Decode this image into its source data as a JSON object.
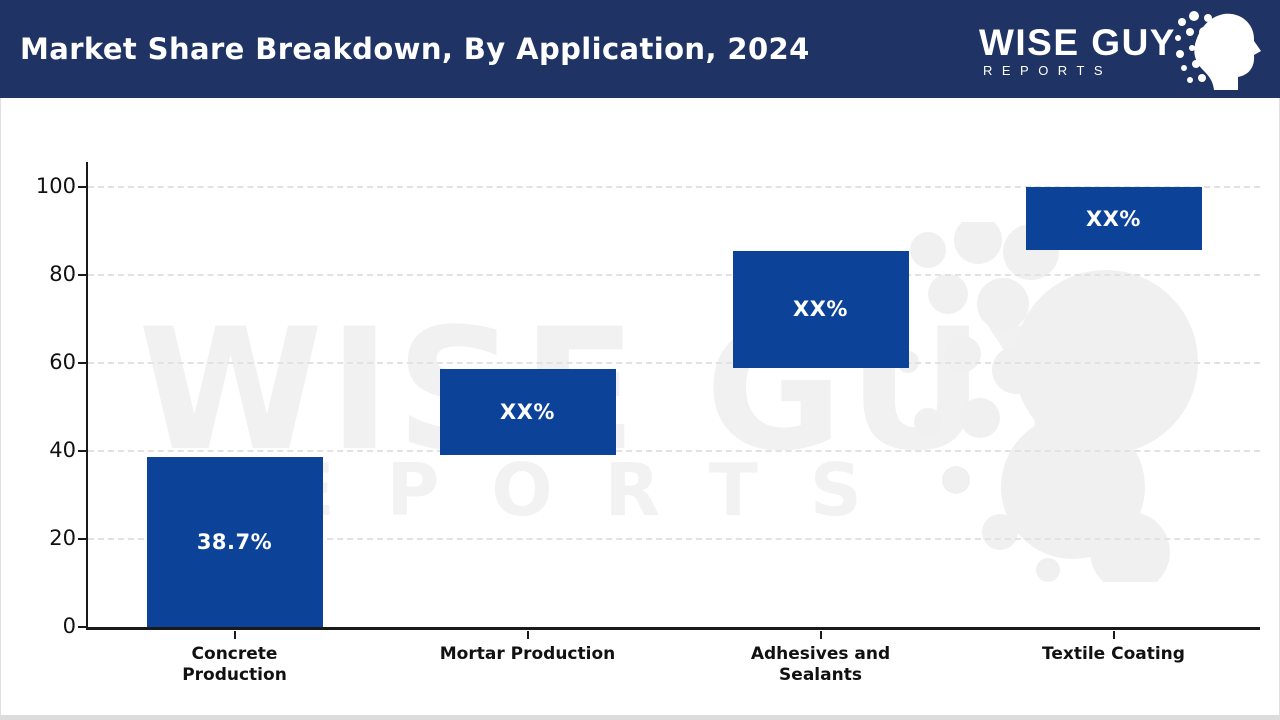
{
  "header": {
    "title": "Market Share Breakdown, By Application, 2024",
    "logo": {
      "line1": "WISE GUY",
      "line2": "REPORTS"
    }
  },
  "watermark": {
    "line1": "WISE GUY",
    "line2": "REPORTS"
  },
  "colors": {
    "header_bg": "#1f3464",
    "bar_blue": "#0c4399",
    "bar_label_white": "#ffffff",
    "grid_gray": "#e2e2e2",
    "footer_gray": "#dcdcdc"
  },
  "chart_data": {
    "type": "bar",
    "subtype": "floating-waterfall",
    "title": "Market Share Breakdown, By Application, 2024",
    "categories": [
      "Concrete\nProduction",
      "Mortar Production",
      "Adhesives and\nSealants",
      "Textile Coating"
    ],
    "segments": [
      {
        "start": 0,
        "end": 38.7
      },
      {
        "start": 39.2,
        "end": 58.6
      },
      {
        "start": 58.9,
        "end": 85.5
      },
      {
        "start": 85.6,
        "end": 100
      }
    ],
    "bar_labels": [
      "38.7%",
      "XX%",
      "XX%",
      "XX%"
    ],
    "yticks": [
      0,
      20,
      40,
      60,
      80,
      100
    ],
    "ylim": [
      0,
      105
    ],
    "xlabel": "",
    "ylabel": "",
    "legend": "none",
    "grid": "horizontal-dashed"
  }
}
